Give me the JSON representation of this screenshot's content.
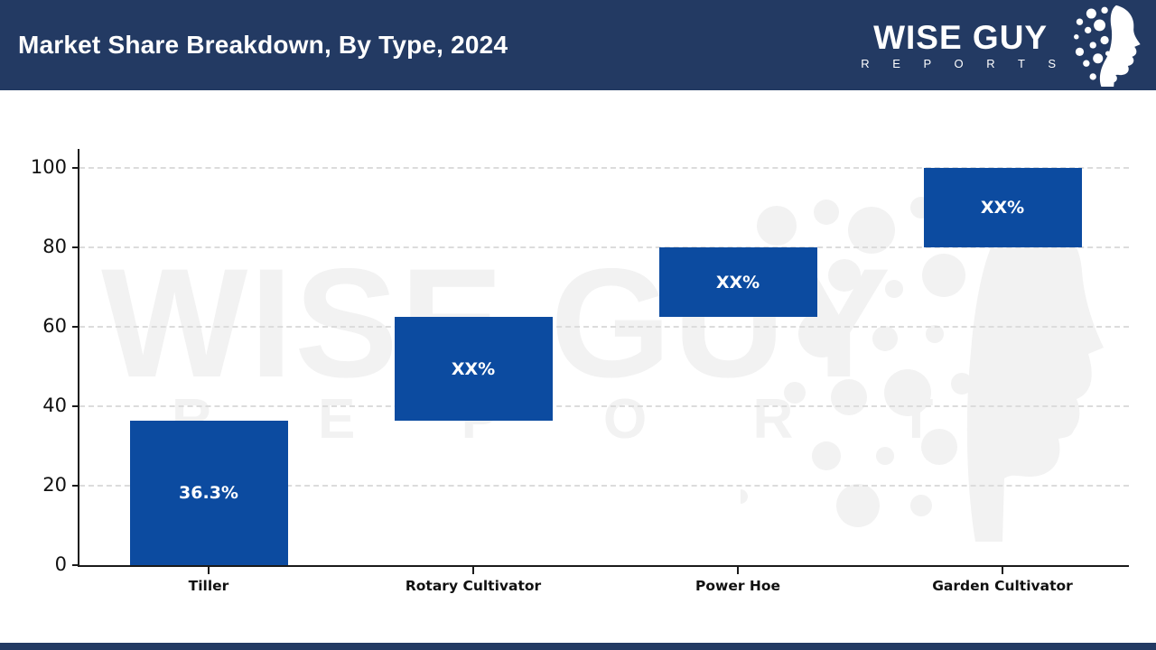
{
  "header": {
    "title": "Market Share Breakdown, By Type, 2024",
    "logo": {
      "line1": "WISE GUY",
      "line2": "R E P O R T S"
    }
  },
  "watermark": {
    "line1": "WISE GUY",
    "line2": "R E P O R T S"
  },
  "colors": {
    "header_bg": "#233A63",
    "footer_bg": "#233A63",
    "bar": "#0C4BA0",
    "bar_label": "#FFFFFF",
    "grid": "#DCDCDC",
    "axis": "#1A1A1A",
    "watermark": "#F2F2F2"
  },
  "chart_data": {
    "type": "bar",
    "subtype": "waterfall",
    "title": "Market Share Breakdown, By Type, 2024",
    "categories": [
      "Tiller",
      "Rotary Cultivator",
      "Power Hoe",
      "Garden Cultivator"
    ],
    "segments": [
      {
        "category": "Tiller",
        "start": 0,
        "end": 36.3,
        "label": "36.3%"
      },
      {
        "category": "Rotary Cultivator",
        "start": 36.3,
        "end": 62.5,
        "label": "XX%"
      },
      {
        "category": "Power Hoe",
        "start": 62.5,
        "end": 80,
        "label": "XX%"
      },
      {
        "category": "Garden Cultivator",
        "start": 80,
        "end": 100,
        "label": "XX%"
      }
    ],
    "xlabel": "",
    "ylabel": "",
    "ylim": [
      0,
      100
    ],
    "yticks": [
      0,
      20,
      40,
      60,
      80,
      100
    ],
    "grid": true,
    "grid_style": "dashed",
    "legend": false
  }
}
